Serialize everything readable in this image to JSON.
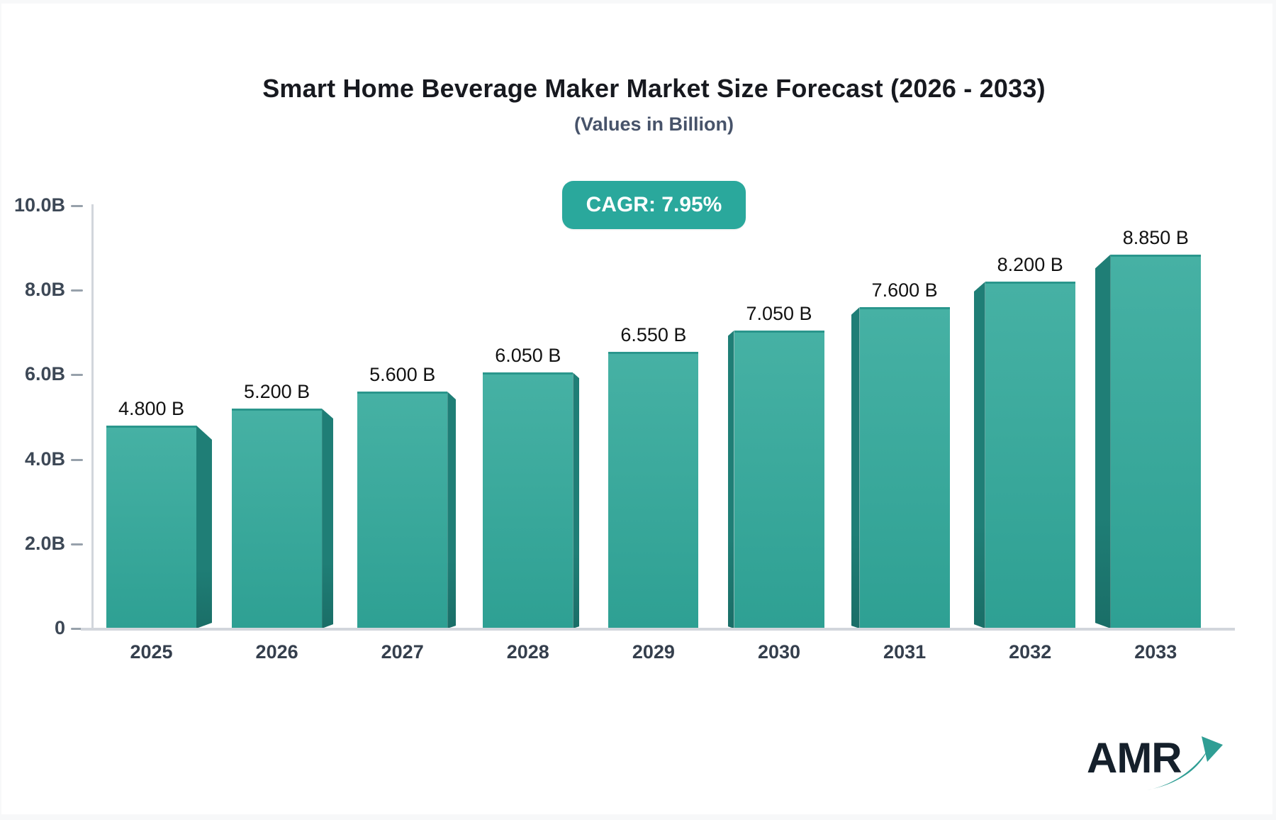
{
  "header": {
    "title": "Smart Home Beverage Maker Market Size Forecast (2026 - 2033)",
    "subtitle": "(Values in Billion)",
    "cagr_label": "CAGR: 7.95%"
  },
  "footer": {
    "logo_text": "AMR"
  },
  "colors": {
    "bar_face_top": "#46b1a4",
    "bar_face_bottom": "#2ea093",
    "bar_top_edge": "#2a968c",
    "bar_side": "#1f7e76",
    "bar_side_dark": "#1a6e67",
    "badge_bg": "#2aa89c",
    "badge_text": "#ffffff",
    "axis_line": "#d2d6dc",
    "tick_mark": "#97a1ab",
    "value_label": "#121212",
    "logo_arrow": "#2f9e94"
  },
  "chart_data": {
    "type": "bar",
    "title": "Smart Home Beverage Maker Market Size Forecast (2026 - 2033)",
    "subtitle": "(Values in Billion)",
    "annotation": "CAGR: 7.95%",
    "categories": [
      "2025",
      "2026",
      "2027",
      "2028",
      "2029",
      "2030",
      "2031",
      "2032",
      "2033"
    ],
    "values": [
      4.8,
      5.2,
      5.6,
      6.05,
      6.55,
      7.05,
      7.6,
      8.2,
      8.85
    ],
    "value_labels": [
      "4.800 B",
      "5.200 B",
      "5.600 B",
      "6.050 B",
      "6.550 B",
      "7.050 B",
      "7.600 B",
      "8.200 B",
      "8.850 B"
    ],
    "y_ticks": [
      {
        "value": 0,
        "label": "0"
      },
      {
        "value": 2,
        "label": "2.0B"
      },
      {
        "value": 4,
        "label": "4.0B"
      },
      {
        "value": 6,
        "label": "6.0B"
      },
      {
        "value": 8,
        "label": "8.0B"
      },
      {
        "value": 10,
        "label": "10.0B"
      }
    ],
    "ylim": [
      0,
      10
    ],
    "grid": false,
    "legend": false,
    "bar_style": "3d-teal"
  }
}
